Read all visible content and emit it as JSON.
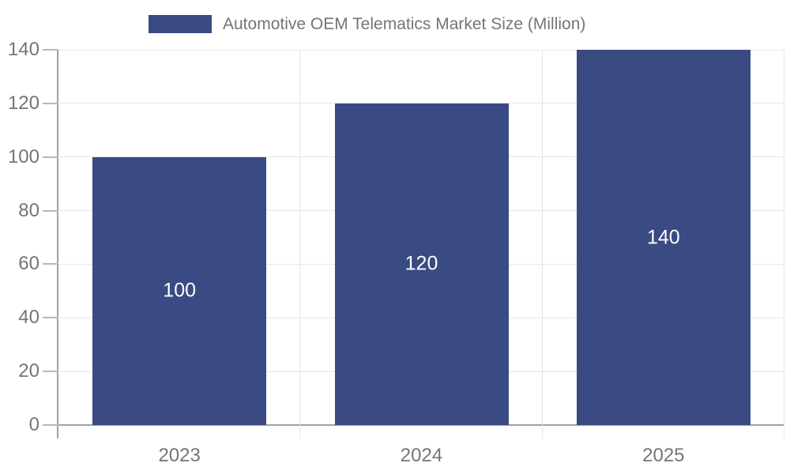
{
  "chart": {
    "legend_label": "Automotive OEM Telematics Market Size (Million)"
  },
  "chart_data": {
    "type": "bar",
    "title": "Automotive OEM Telematics Market Size (Million)",
    "categories": [
      "2023",
      "2024",
      "2025"
    ],
    "series": [
      {
        "name": "Automotive OEM Telematics Market Size (Million)",
        "values": [
          100,
          120,
          140
        ]
      }
    ],
    "data_labels": [
      "100",
      "120",
      "140"
    ],
    "xlabel": "",
    "ylabel": "",
    "ylim": [
      0,
      140
    ],
    "yticks": [
      0,
      20,
      40,
      60,
      80,
      100,
      120,
      140
    ],
    "grid": true,
    "legend_position": "top",
    "colors": {
      "bar": "#3A4A83",
      "data_label": "#ffffff",
      "axis_line": "#a0a0a0",
      "tick_mark": "#b8b8b8",
      "gridline": "#e6e6e6",
      "tick_text": "#757575",
      "title_text": "#757575"
    }
  }
}
